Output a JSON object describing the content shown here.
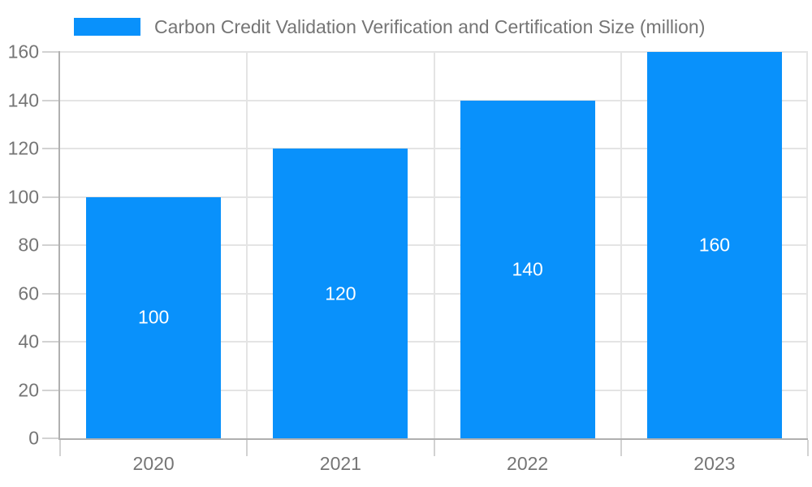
{
  "legend": {
    "label": "Carbon Credit Validation Verification and Certification Size (million)"
  },
  "chart_data": {
    "type": "bar",
    "title": "",
    "xlabel": "",
    "ylabel": "",
    "categories": [
      "2020",
      "2021",
      "2022",
      "2023"
    ],
    "series": [
      {
        "name": "Carbon Credit Validation Verification and Certification Size (million)",
        "values": [
          100,
          120,
          140,
          160
        ]
      }
    ],
    "bar_value_labels": [
      "100",
      "120",
      "140",
      "160"
    ],
    "ylim": [
      0,
      160
    ],
    "yticks": [
      0,
      20,
      40,
      60,
      80,
      100,
      120,
      140,
      160
    ],
    "grid": true,
    "legend_position": "top-left"
  },
  "colors": {
    "bar": "#0991fb",
    "bar_label": "#ffffff",
    "axis_line": "#b0b0b0",
    "grid_line": "#e4e4e4",
    "tick_line": "#d2d2d2",
    "text": "#757575"
  }
}
